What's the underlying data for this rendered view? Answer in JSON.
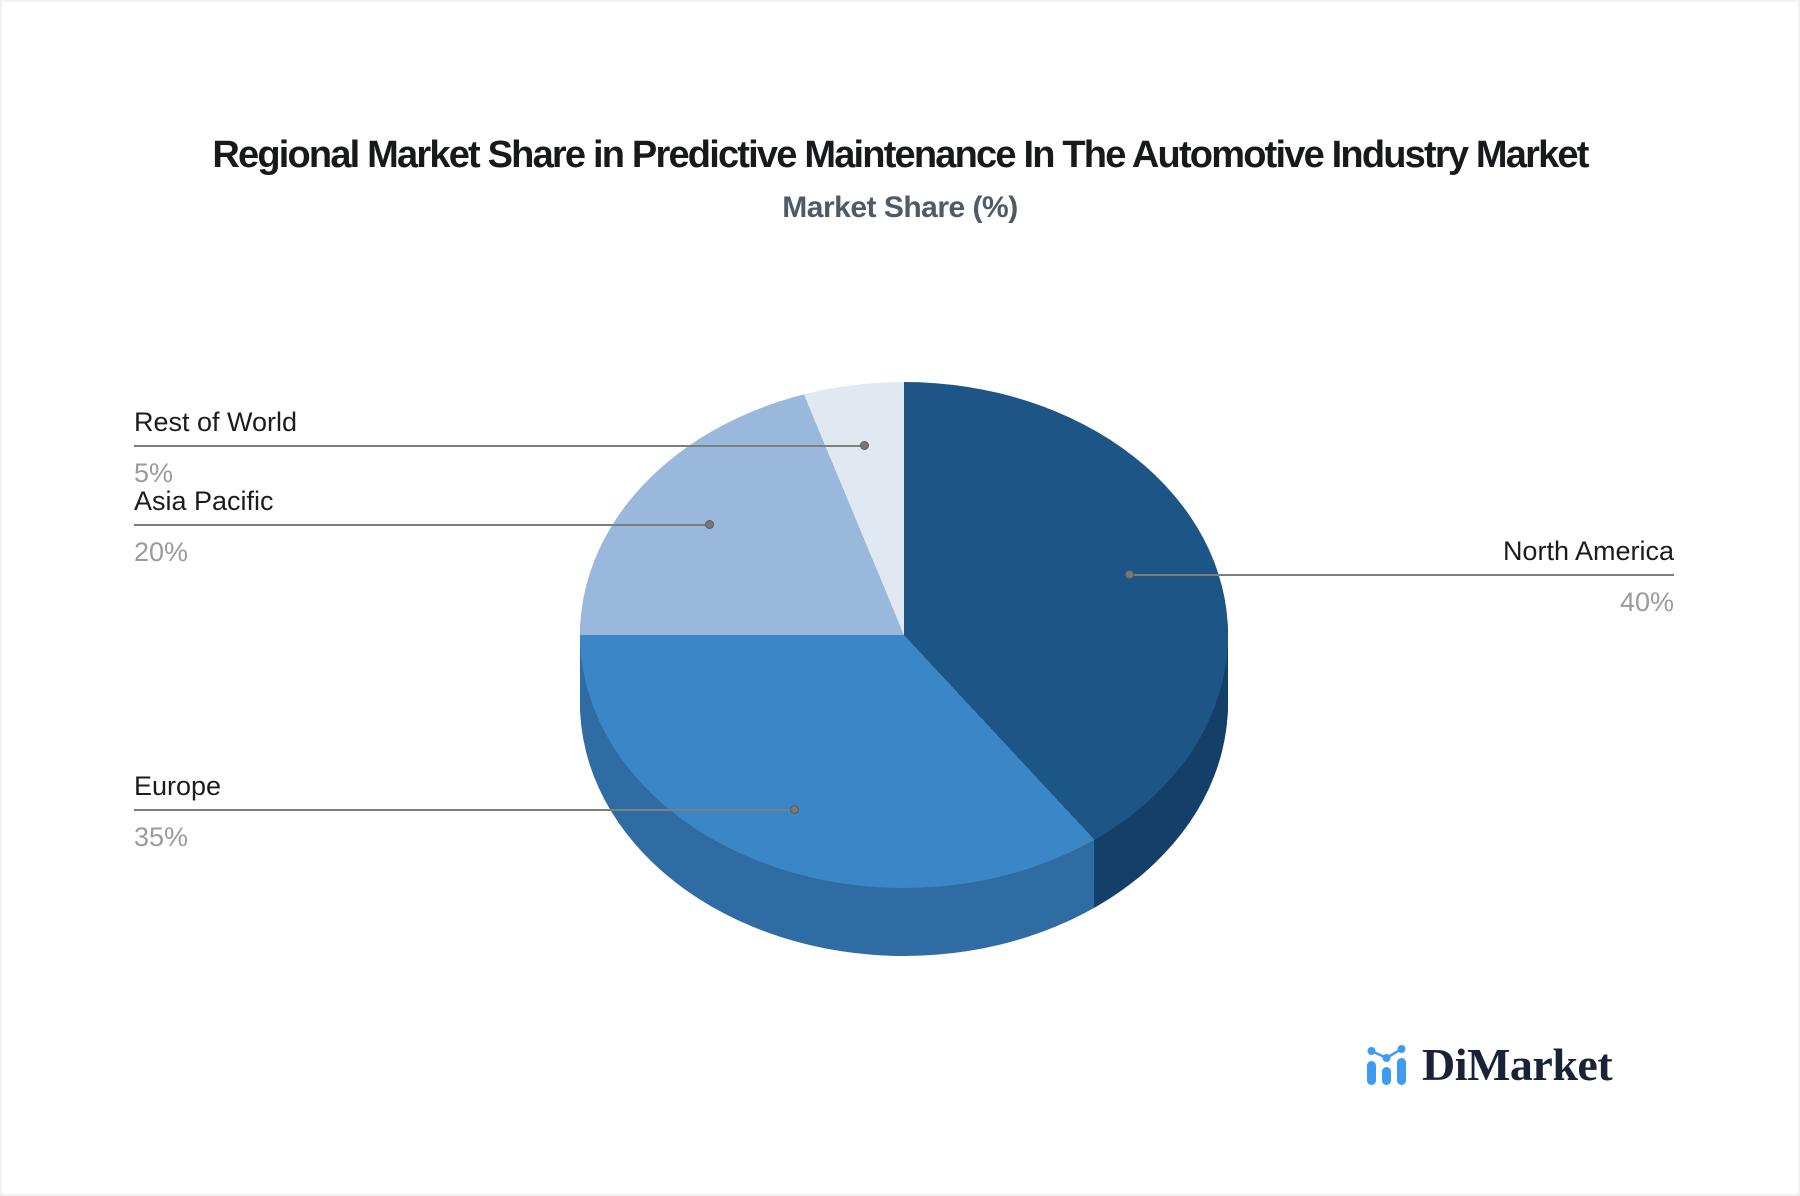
{
  "title": "Regional Market Share in Predictive Maintenance In The Automotive Industry Market",
  "subtitle": "Market Share (%)",
  "chart_data": {
    "type": "pie",
    "title": "Regional Market Share in Predictive Maintenance In The Automotive Industry Market",
    "value_label": "Market Share (%)",
    "unit": "%",
    "style": "3d-pie",
    "start_angle_deg": 0,
    "direction": "clockwise",
    "legend_position": "none",
    "labeling": "leader-lines",
    "leader_line_color": "#7e7e7e",
    "slices": [
      {
        "label": "North America",
        "value": 40,
        "pct": "40%",
        "color": "#1C5586",
        "side_color": "#133F68"
      },
      {
        "label": "Europe",
        "value": 35,
        "pct": "35%",
        "color": "#3B86C7",
        "side_color": "#2E6CA3"
      },
      {
        "label": "Asia Pacific",
        "value": 20,
        "pct": "20%",
        "color": "#9AB8DB",
        "side_color": "#7A9CC4"
      },
      {
        "label": "Rest of World",
        "value": 5,
        "pct": "5%",
        "color": "#E0E8F1",
        "side_color": "#BCC9DA"
      }
    ]
  },
  "logo": {
    "text": "DiMarket",
    "accent_color": "#3E9BF2",
    "text_color": "#1A2238"
  }
}
